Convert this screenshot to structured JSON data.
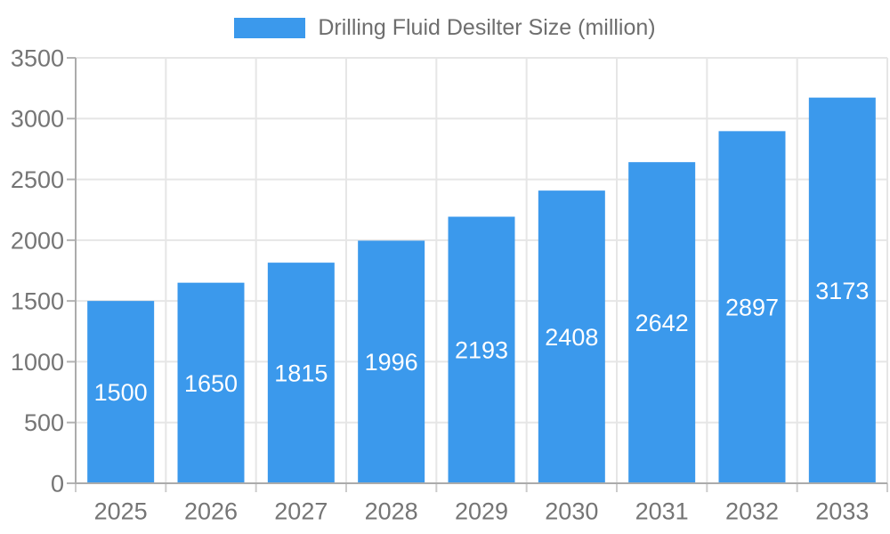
{
  "page": {
    "background": "#FFFFFF"
  },
  "legend": {
    "label": "Drilling Fluid Desilter Size (million)"
  },
  "chart_data": {
    "type": "bar",
    "title": "Drilling Fluid Desilter Size (million)",
    "series_name": "Drilling Fluid Desilter Size (million)",
    "categories": [
      "2025",
      "2026",
      "2027",
      "2028",
      "2029",
      "2030",
      "2031",
      "2032",
      "2033"
    ],
    "values": [
      1500,
      1650,
      1815,
      1996,
      2193,
      2408,
      2642,
      2897,
      3173
    ],
    "bar_value_labels": [
      "1500",
      "1650",
      "1815",
      "1996",
      "2193",
      "2408",
      "2642",
      "2897",
      "3173"
    ],
    "xlabel": "",
    "ylabel": "",
    "ylim": [
      0,
      3500
    ],
    "ytick_step": 500,
    "yticks": [
      0,
      500,
      1000,
      1500,
      2000,
      2500,
      3000,
      3500
    ],
    "grid": true,
    "legend_position": "top-center",
    "value_labels_inside_bars": true,
    "colors": {
      "bar": "#3B99EC",
      "bar_value_label": "#FFFFFF",
      "axis_text": "#757575",
      "legend_text": "#6E6E6E",
      "grid_line": "#E6E6E6",
      "axis_line": "#ABABAB",
      "y_tick": "#B3B3B3",
      "x_tick": "#CCCCCC",
      "background": "#FFFFFF"
    }
  }
}
